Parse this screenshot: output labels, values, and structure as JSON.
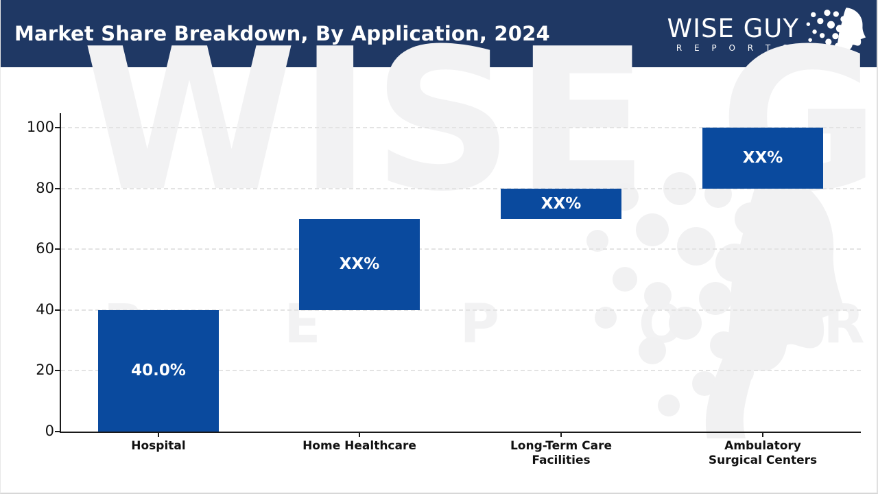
{
  "header": {
    "title": "Market Share Breakdown, By Application, 2024",
    "logo": {
      "wordmark": "WISE GUY",
      "subtext": "R E P O R T S"
    }
  },
  "watermark": {
    "line1": "WISE GUY",
    "line2": "R E P O R T S"
  },
  "chart_data": {
    "type": "bar",
    "subtype": "waterfall",
    "title": "Market Share Breakdown, By Application, 2024",
    "categories": [
      "Hospital",
      "Home Healthcare",
      "Long-Term Care Facilities",
      "Ambulatory Surgical Centers"
    ],
    "segments": [
      {
        "category": "Hospital",
        "axis_label_lines": [
          "Hospital"
        ],
        "start": 0,
        "end": 40,
        "label": "40.0%"
      },
      {
        "category": "Home Healthcare",
        "axis_label_lines": [
          "Home Healthcare"
        ],
        "start": 40,
        "end": 70,
        "label": "XX%"
      },
      {
        "category": "Long-Term Care Facilities",
        "axis_label_lines": [
          "Long-Term Care",
          "Facilities"
        ],
        "start": 70,
        "end": 80,
        "label": "XX%"
      },
      {
        "category": "Ambulatory Surgical Centers",
        "axis_label_lines": [
          "Ambulatory",
          "Surgical Centers"
        ],
        "start": 80,
        "end": 100,
        "label": "XX%"
      }
    ],
    "yticks": [
      0,
      20,
      40,
      60,
      80,
      100
    ],
    "ylim": [
      0,
      105
    ],
    "xlabel": "",
    "ylabel": "",
    "legend": null,
    "grid": "horizontal-dashed",
    "bar_color": "#0a4a9e",
    "bar_label_color": "#ffffff"
  },
  "colors": {
    "header_bg": "#1f3864",
    "bar": "#0a4a9e",
    "grid": "#e3e3e3",
    "axis": "#1a1a1a",
    "watermark": "#f2f2f3"
  }
}
